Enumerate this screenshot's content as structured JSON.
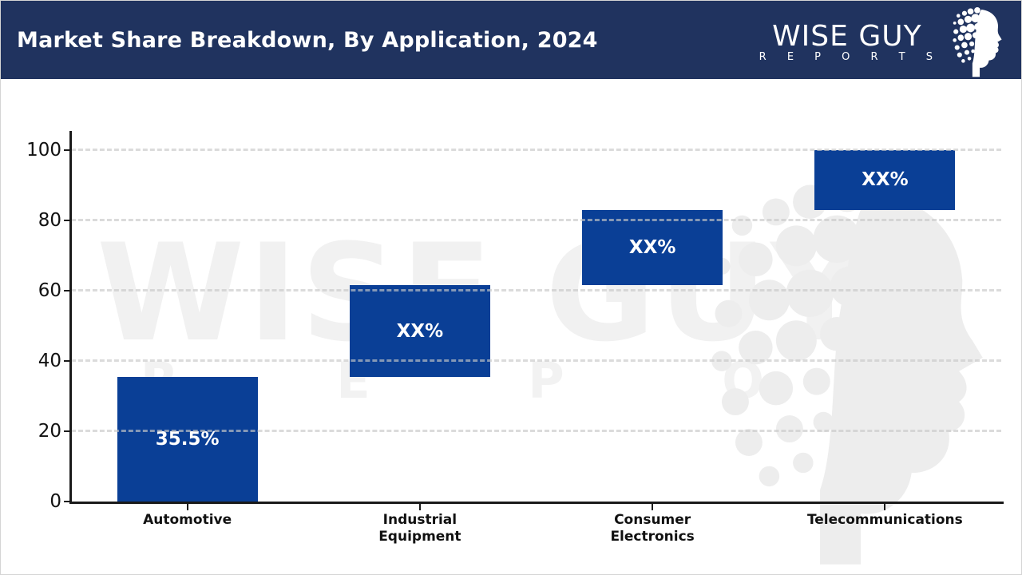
{
  "header": {
    "title": "Market Share Breakdown, By Application, 2024",
    "logo": {
      "name": "Wise Guy Reports logo",
      "line1": "WISE GUY",
      "line2": "R E P O R T S"
    }
  },
  "watermark": {
    "line1": "WISE GUY",
    "line2": "R E P O R T S"
  },
  "chart_data": {
    "type": "bar",
    "subtype": "waterfall-floating-segments",
    "title": "Market Share Breakdown, By Application, 2024",
    "categories": [
      "Automotive",
      "Industrial Equipment",
      "Consumer Electronics",
      "Telecommunications"
    ],
    "category_labels": [
      "Automotive",
      "Industrial\nEquipment",
      "Consumer\nElectronics",
      "Telecommunications"
    ],
    "segments": [
      {
        "category": "Automotive",
        "start": 0,
        "end": 35.5,
        "label": "35.5%"
      },
      {
        "category": "Industrial Equipment",
        "start": 35.5,
        "end": 61.5,
        "label": "XX%"
      },
      {
        "category": "Consumer Electronics",
        "start": 61.5,
        "end": 83,
        "label": "XX%"
      },
      {
        "category": "Telecommunications",
        "start": 83,
        "end": 100,
        "label": "XX%"
      }
    ],
    "xlabel": "",
    "ylabel": "",
    "ylim": [
      0,
      100
    ],
    "yticks": [
      0,
      20,
      40,
      60,
      80,
      100
    ],
    "grid": "horizontal-dashed",
    "legend": "none",
    "colors": {
      "bar": "#0a3f96",
      "bar_label": "#ffffff",
      "axis": "#1a1a1a",
      "gridline": "#d9d9d9",
      "header_bg": "#20335f",
      "watermark": "#f0f0f0"
    }
  }
}
